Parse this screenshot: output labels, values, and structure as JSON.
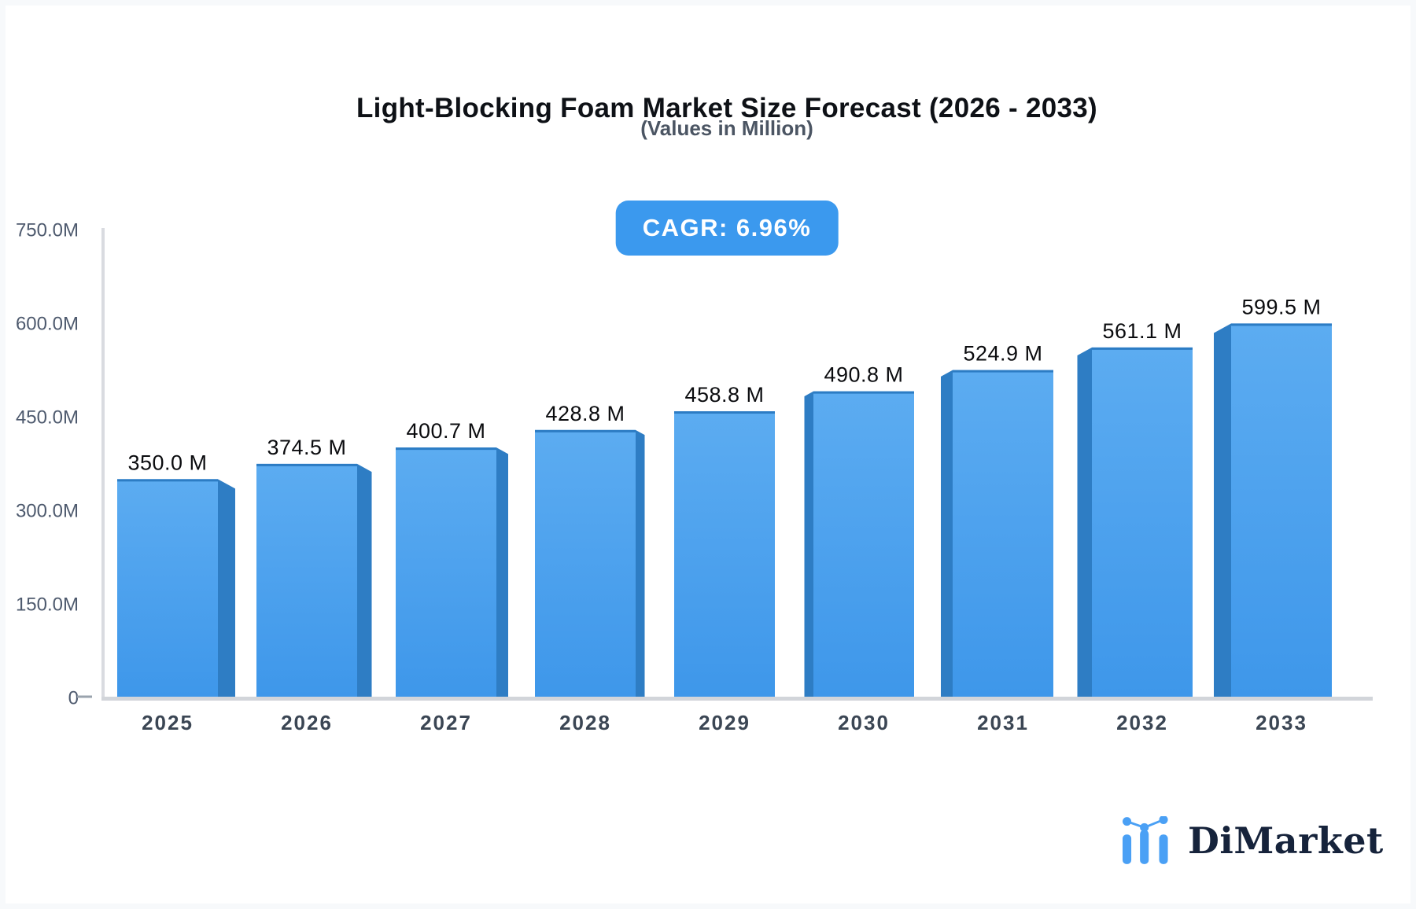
{
  "cagr_badge": {
    "label": "CAGR: 6.96%"
  },
  "brand": {
    "name": "DiMarket",
    "icon": "bar-chart-trend-icon"
  },
  "colors": {
    "frame_color": "#f7f9fb",
    "title_text": "#0e1116",
    "subtitle_text": "#4b5563",
    "badge_bg": "#3b99ee",
    "badge_text": "#ffffff",
    "bar_face_top": "#5cacf1",
    "bar_face_bottom": "#3e97ea",
    "bar_side": "#2e7dc4",
    "bar_edge": "#2c7cc4",
    "axis_line": "#d9dbe0",
    "baseline": "#d2d5da",
    "zero_tick": "#9aa3ad",
    "tick_text": "#4e5a6e",
    "xlabel_text": "#3b4654",
    "value_text": "#0b0c0f",
    "brand_text": "#16233b",
    "brand_icon": "#4aa0f5"
  },
  "chart_data": {
    "type": "bar",
    "title": "Light-Blocking Foam Market Size Forecast (2026 - 2033)",
    "subtitle": "(Values in Million)",
    "cagr": "6.96%",
    "unit": "Million",
    "categories": [
      "2025",
      "2026",
      "2027",
      "2028",
      "2029",
      "2030",
      "2031",
      "2032",
      "2033"
    ],
    "values": [
      350.0,
      374.5,
      400.7,
      428.8,
      458.8,
      490.8,
      524.9,
      561.1,
      599.5
    ],
    "value_labels": [
      "350.0 M",
      "374.5 M",
      "400.7 M",
      "428.8 M",
      "458.8 M",
      "490.8 M",
      "524.9 M",
      "561.1 M",
      "599.5 M"
    ],
    "y_ticks": [
      {
        "value": 0,
        "label": "0"
      },
      {
        "value": 150,
        "label": "150.0M"
      },
      {
        "value": 300,
        "label": "300.0M"
      },
      {
        "value": 450,
        "label": "450.0M"
      },
      {
        "value": 600,
        "label": "600.0M"
      },
      {
        "value": 750,
        "label": "750.0M"
      }
    ],
    "ylim": [
      0,
      750
    ],
    "grid": false,
    "legend": null,
    "bar_style": "3d-perspective-center-vanishing"
  }
}
